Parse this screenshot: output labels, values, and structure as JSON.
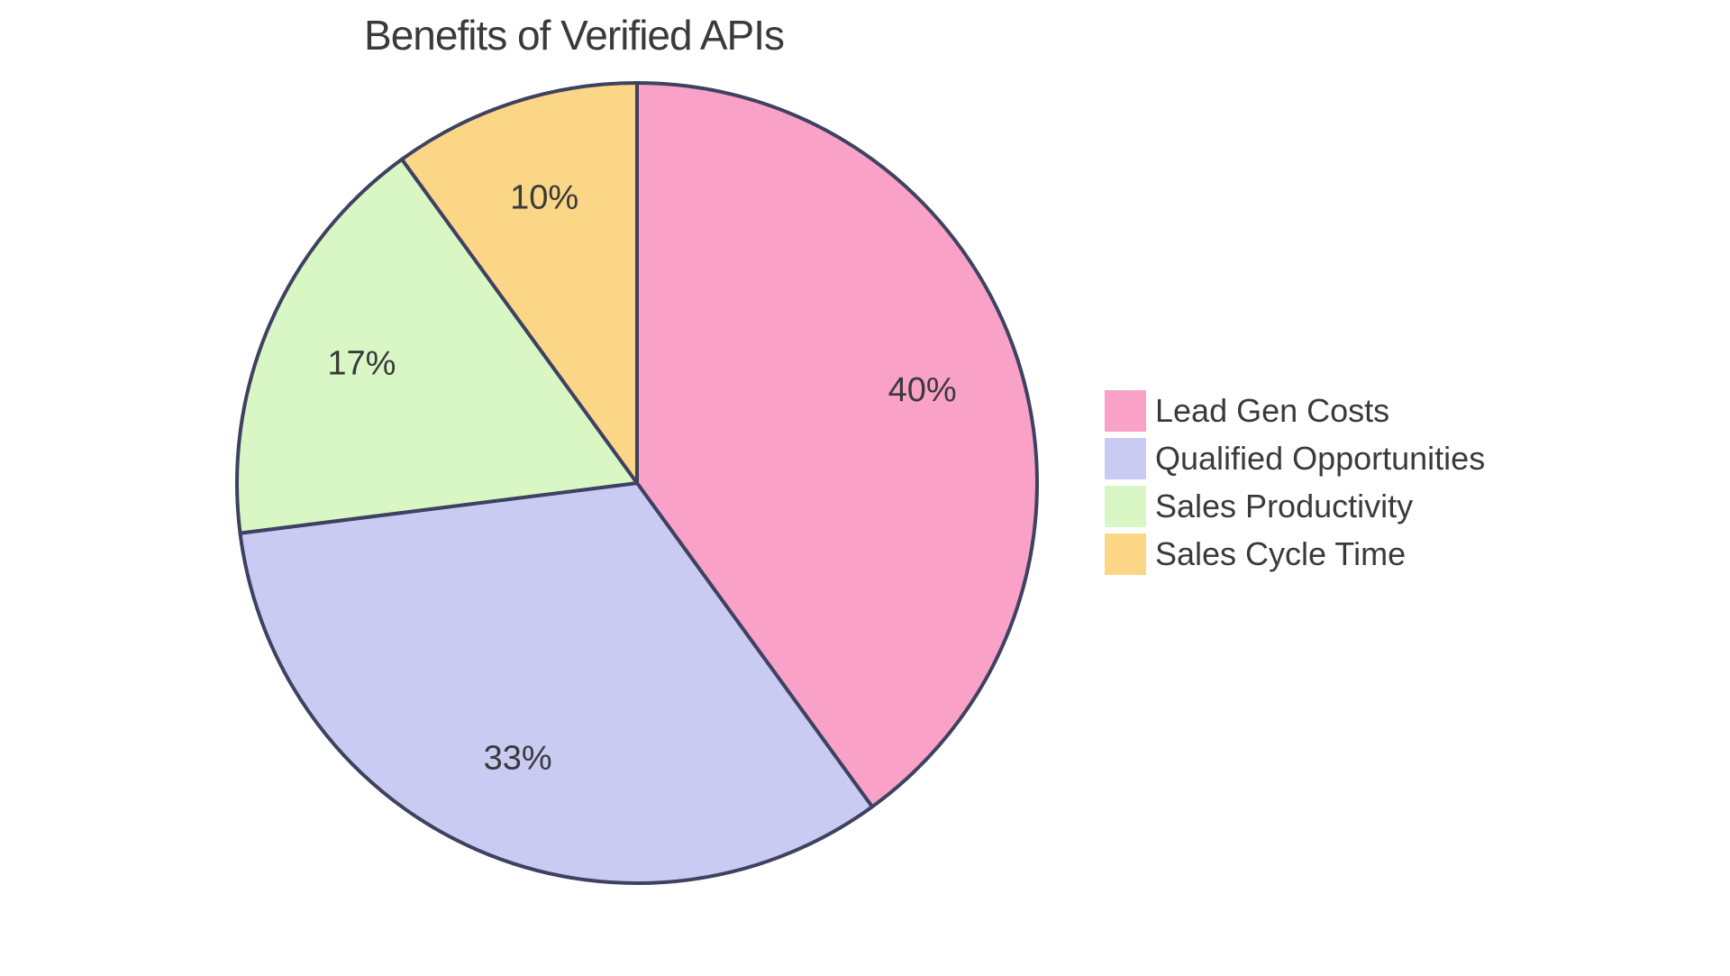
{
  "page": {
    "background_color": "#FFFFFF"
  },
  "chart_data": {
    "type": "pie",
    "title": "Benefits of Verified APIs",
    "categories": [
      "Lead Gen Costs",
      "Qualified Opportunities",
      "Sales Productivity",
      "Sales Cycle Time"
    ],
    "values": [
      40,
      33,
      17,
      10
    ],
    "slice_labels": [
      "40%",
      "33%",
      "17%",
      "10%"
    ],
    "colors": [
      "#FAA1C7",
      "#C9CBF3",
      "#D8F7C5",
      "#FBD687"
    ],
    "start_angle": "top",
    "direction": "clockwise",
    "stroke_color": "#3E4160",
    "stroke_width": 4,
    "title_color": "#3A3A3A",
    "label_color": "#3A3A3A",
    "label_distance": 0.75,
    "legend_position": "right",
    "legend_text_color": "#3A3A3A"
  }
}
